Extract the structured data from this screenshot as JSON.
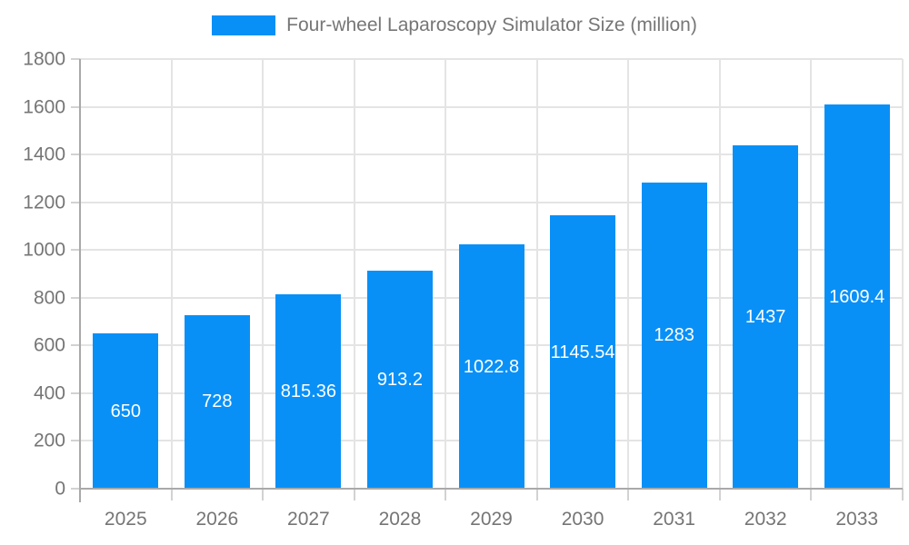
{
  "legend": {
    "label": "Four-wheel Laparoscopy Simulator Size (million)"
  },
  "chart_data": {
    "type": "bar",
    "title": "Four-wheel Laparoscopy Simulator Size (million)",
    "categories": [
      "2025",
      "2026",
      "2027",
      "2028",
      "2029",
      "2030",
      "2031",
      "2032",
      "2033"
    ],
    "values": [
      650,
      728,
      815.36,
      913.2,
      1022.8,
      1145.54,
      1283,
      1437,
      1609.4
    ],
    "data_labels": [
      "650",
      "728",
      "815.36",
      "913.2",
      "1022.8",
      "1145.54",
      "1283",
      "1437",
      "1609.4"
    ],
    "xlabel": "",
    "ylabel": "",
    "ylim": [
      0,
      1800
    ],
    "ytick_step": 200,
    "yticks": [
      "0",
      "200",
      "400",
      "600",
      "800",
      "1000",
      "1200",
      "1400",
      "1600",
      "1800"
    ],
    "grid": true,
    "legend_position": "top",
    "colors": {
      "bar": "#0990f7",
      "grid": "#e4e4e4",
      "axis": "#a9a9a9",
      "tick": "#d2d2d2",
      "axis_text": "#757575",
      "value_label_text": "#ffffff",
      "legend_text": "#767676",
      "background": "#ffffff"
    }
  }
}
